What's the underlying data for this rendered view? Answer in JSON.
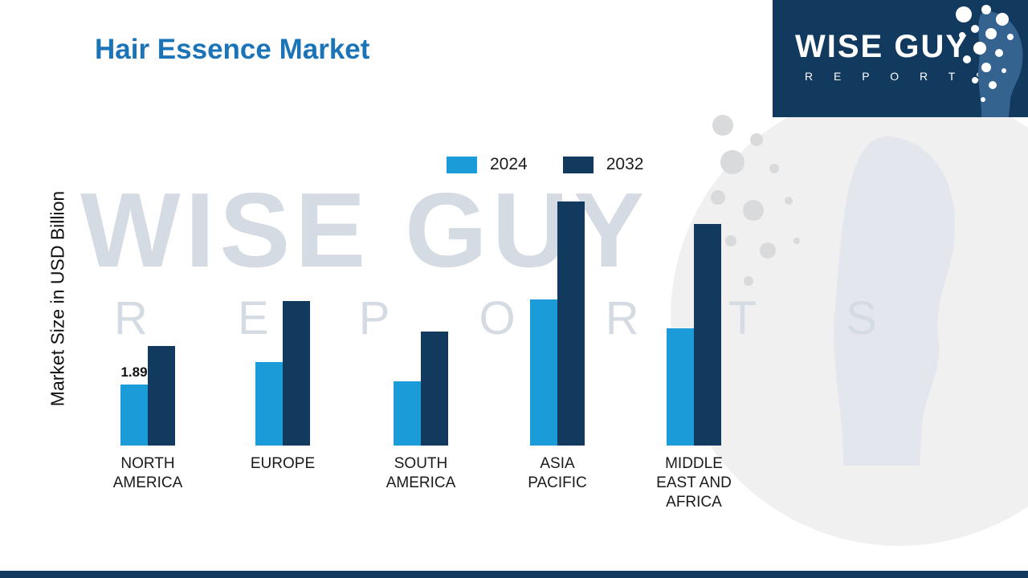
{
  "title": "Hair Essence Market",
  "watermark": {
    "line1": "WISE GUY",
    "line2": "R E P O R T S"
  },
  "logo": {
    "brand": "WISE GUY",
    "sub": "R E P O R T S"
  },
  "colors": {
    "title_blue": "#1b74b8",
    "navy": "#123a5e",
    "light_blue": "#1b9cd9",
    "circle_gray": "#f0f0f1",
    "watermark_gray": "#d5dbe2"
  },
  "chart_data": {
    "type": "bar",
    "title": "Hair Essence Market",
    "xlabel": "",
    "ylabel": "Market Size in USD Billion",
    "categories": [
      "NORTH AMERICA",
      "EUROPE",
      "SOUTH AMERICA",
      "ASIA PACIFIC",
      "MIDDLE EAST AND AFRICA"
    ],
    "series": [
      {
        "name": "2024",
        "color": "#1b9cd9",
        "values": [
          1.89,
          2.6,
          2.0,
          4.55,
          3.65
        ]
      },
      {
        "name": "2032",
        "color": "#123a5e",
        "values": [
          3.1,
          4.5,
          3.55,
          7.6,
          6.9
        ]
      }
    ],
    "annotations": [
      {
        "series": "2024",
        "category": "NORTH AMERICA",
        "text": "1.89"
      }
    ],
    "ylim": [
      0,
      8
    ],
    "grid": false,
    "legend_position": "top-center"
  }
}
